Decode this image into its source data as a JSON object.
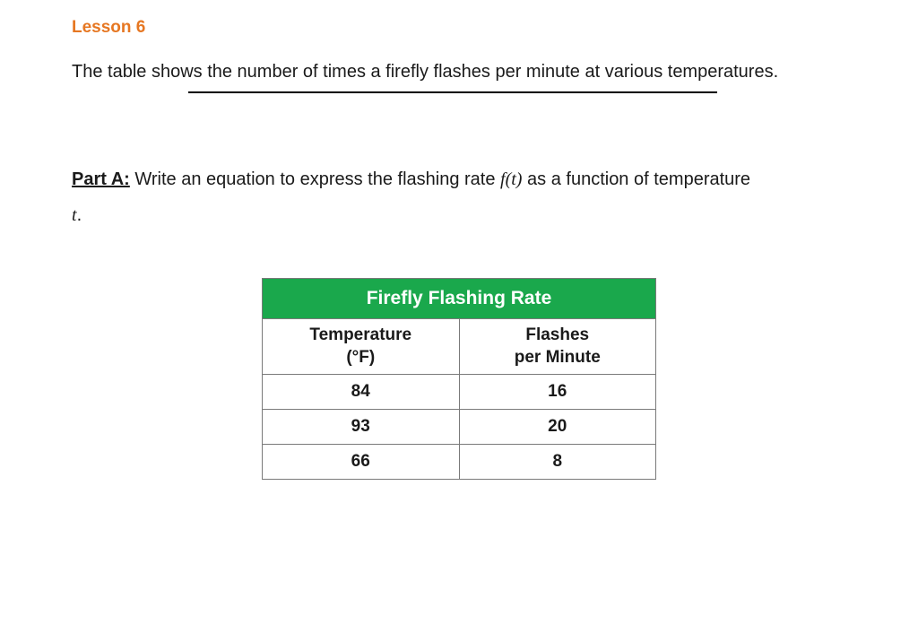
{
  "lesson": {
    "heading": "Lesson 6",
    "heading_color": "#e67722"
  },
  "intro": {
    "text_full": "The table shows the number of times a firefly flashes per minute at various temperatures."
  },
  "partA": {
    "label": "Part A:",
    "text_before_ft": " Write an equation to express the flashing rate ",
    "f_of_t": "f(t)",
    "text_after_ft": " as a function of temperature ",
    "t_var": "t",
    "period": "."
  },
  "table": {
    "type": "table",
    "title": "Firefly Flashing Rate",
    "title_bg": "#1aa84c",
    "title_color": "#ffffff",
    "border_color": "#7a7a7a",
    "cell_bg": "#ffffff",
    "text_color": "#1a1a1a",
    "columns": [
      {
        "line1": "Temperature",
        "line2": "(°F)"
      },
      {
        "line1": "Flashes",
        "line2": "per Minute"
      }
    ],
    "rows": [
      [
        "84",
        "16"
      ],
      [
        "93",
        "20"
      ],
      [
        "66",
        "8"
      ]
    ]
  }
}
